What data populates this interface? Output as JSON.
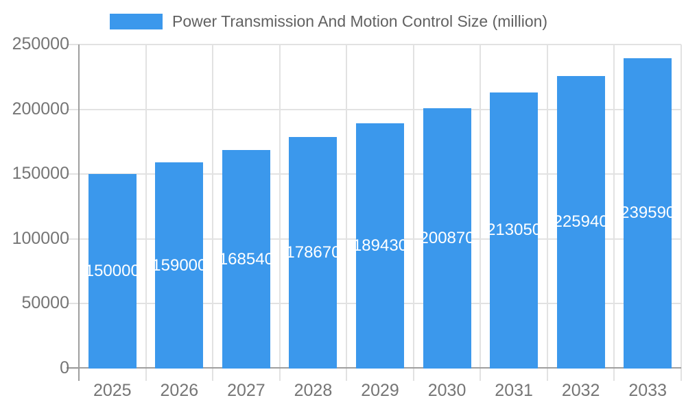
{
  "chart_data": {
    "type": "bar",
    "title": "Power Transmission And Motion Control Size (million)",
    "categories": [
      "2025",
      "2026",
      "2027",
      "2028",
      "2029",
      "2030",
      "2031",
      "2032",
      "2033"
    ],
    "series": [
      {
        "name": "Power Transmission And Motion Control Size (million)",
        "values": [
          150000,
          159000,
          168540,
          178670,
          189430,
          200870,
          213050,
          225940,
          239590
        ]
      }
    ],
    "bar_value_labels": [
      "150000",
      "159000",
      "168540",
      "178670",
      "189430",
      "200870",
      "213050",
      "225940",
      "239590"
    ],
    "xlabel": "",
    "ylabel": "",
    "ylim": [
      0,
      250000
    ],
    "yticks": [
      0,
      50000,
      100000,
      150000,
      200000,
      250000
    ],
    "grid": true,
    "legend_position": "top",
    "colors": {
      "bar": "#3B98EC",
      "grid": "#E2E2E2",
      "axis": "#9E9E9E",
      "tick_text": "#757575",
      "title_text": "#616161",
      "bar_label_text": "#FFFFFF",
      "background": "#FFFFFF"
    }
  }
}
